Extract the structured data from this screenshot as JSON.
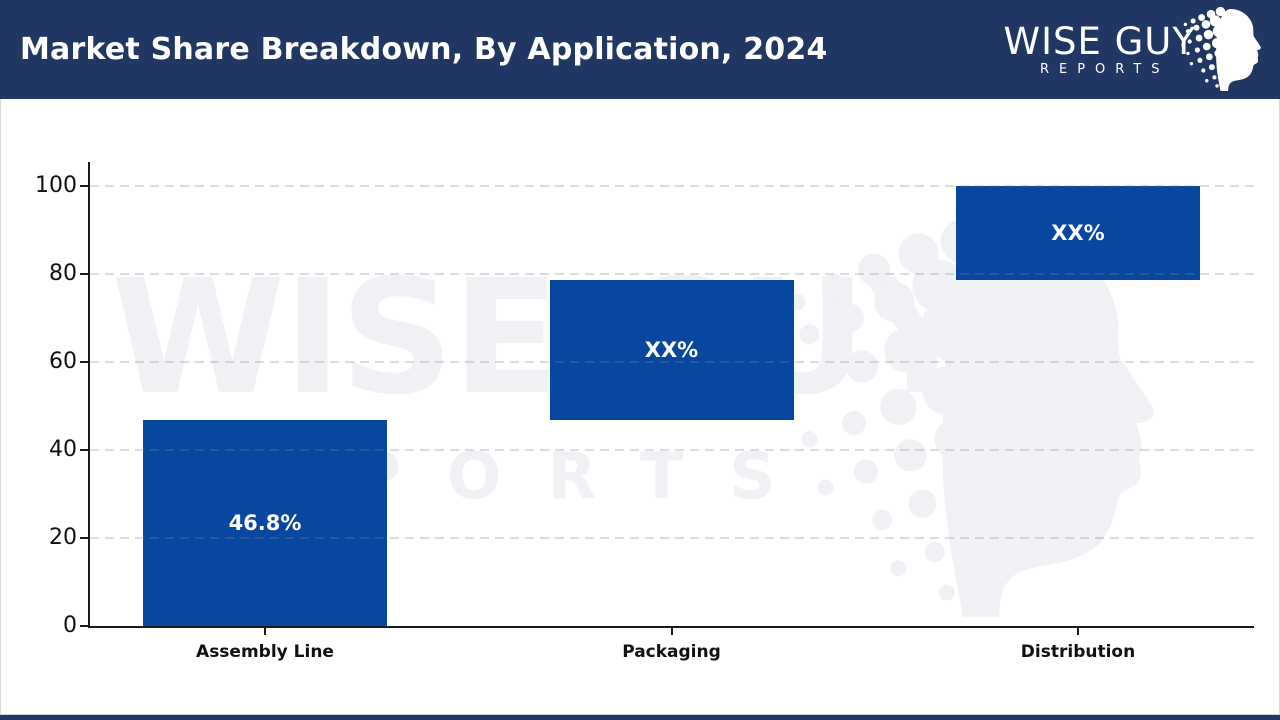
{
  "header": {
    "title": "Market Share Breakdown, By Application, 2024",
    "logo": {
      "line1": "WISE GUY",
      "line2": "REPORTS"
    }
  },
  "watermark": {
    "line1": "WISE GUY",
    "line2": "REPORTS"
  },
  "colors": {
    "header_bg": "#203763",
    "footer_bg": "#203763",
    "bar": "#08479F",
    "bar_label_text": "#FFFFFF",
    "axis": "#1A1A1A",
    "tick_label": "#111111",
    "watermark": "#EFF1F4",
    "title_text": "#FFFFFF",
    "logo_text": "#FFFFFF"
  },
  "chart_data": {
    "type": "bar",
    "subtype": "waterfall",
    "title": "Market Share Breakdown, By Application, 2024",
    "categories": [
      "Assembly Line",
      "Packaging",
      "Distribution"
    ],
    "segments": [
      {
        "category": "Assembly Line",
        "start": 0,
        "end": 46.8,
        "label": "46.8%"
      },
      {
        "category": "Packaging",
        "start": 46.8,
        "end": 78.6,
        "label": "XX%"
      },
      {
        "category": "Distribution",
        "start": 78.6,
        "end": 100,
        "label": "XX%"
      }
    ],
    "y_ticks": [
      0,
      20,
      40,
      60,
      80,
      100
    ],
    "ylim": [
      0,
      105
    ],
    "xlabel": "",
    "ylabel": "",
    "grid": "horizontal-dashed",
    "legend": null
  }
}
